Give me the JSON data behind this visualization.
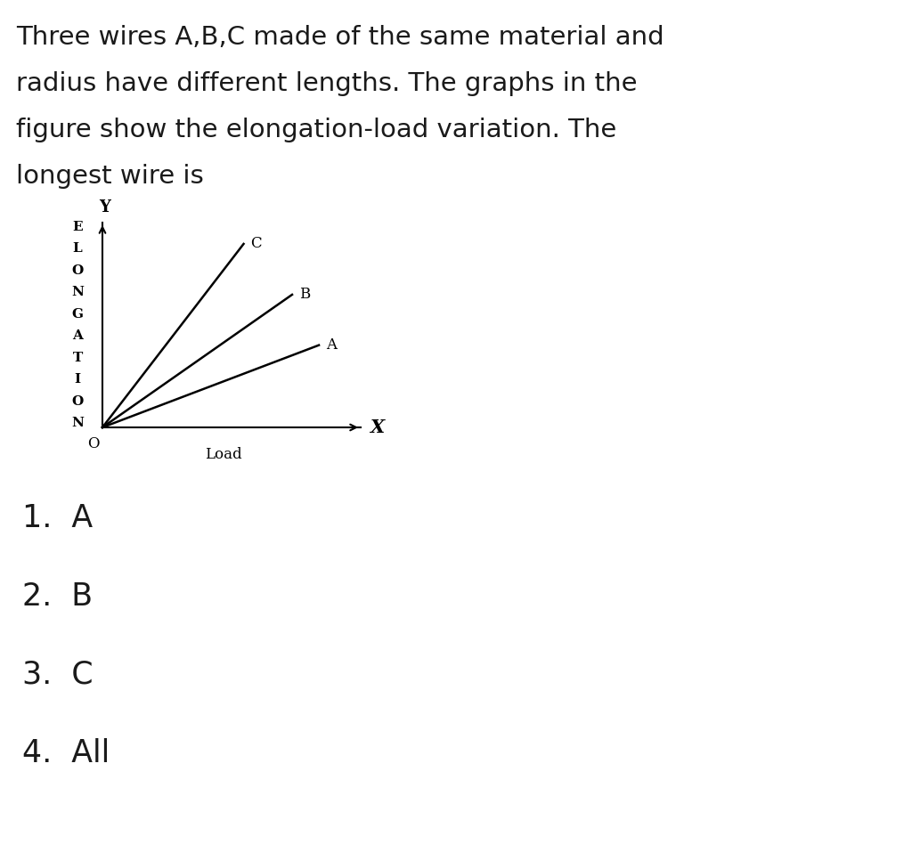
{
  "title_line1": "Three wires A,B,C made of the same material and",
  "title_line2": "radius have different lengths. The graphs in the",
  "title_line3": "figure show the elongation-load variation. The",
  "title_line4": "longest wire is",
  "title_fontsize": 21,
  "title_color": "#1a1a1a",
  "background_color": "#ffffff",
  "elongation_letters": [
    "E",
    "L",
    "O",
    "N",
    "G",
    "A",
    "T",
    "I",
    "O",
    "N"
  ],
  "ylabel_letter_fontsize": 11,
  "xlabel_text": "Load",
  "x_axis_label": "X",
  "y_axis_label": "Y",
  "origin_label": "O",
  "lines": [
    {
      "label": "A",
      "slope": 0.38,
      "color": "#1a1a1a"
    },
    {
      "label": "B",
      "slope": 0.7,
      "color": "#1a1a1a"
    },
    {
      "label": "C",
      "slope": 1.3,
      "color": "#1a1a1a"
    }
  ],
  "options": [
    {
      "num": "1.",
      "text": "A"
    },
    {
      "num": "2.",
      "text": "B"
    },
    {
      "num": "3.",
      "text": "C"
    },
    {
      "num": "4.",
      "text": "All"
    }
  ],
  "options_fontsize": 25,
  "options_color": "#1a1a1a"
}
